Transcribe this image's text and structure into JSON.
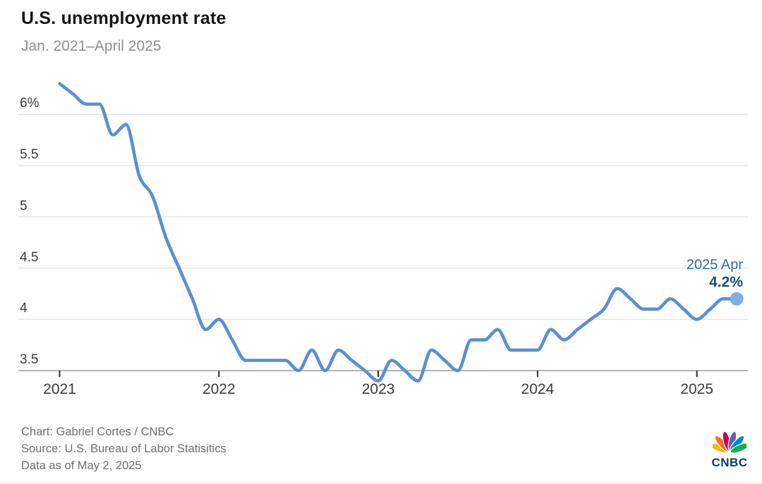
{
  "header": {
    "title": "U.S. unemployment rate",
    "subtitle": "Jan. 2021–April 2025"
  },
  "annotation": {
    "label": "2025 Apr",
    "value": "4.2%"
  },
  "footer": {
    "credit": "Chart: Gabriel Cortes / CNBC",
    "source": "Source: U.S. Bureau of Labor Statisitics",
    "as_of": "Data as of May 2, 2025",
    "logo_text": "CNBC"
  },
  "colors": {
    "line": "#5b8fd1",
    "end_dot": "#85ade0",
    "grid": "#e4e4e4",
    "baseline": "#a5a5a5",
    "tick": "#2b2b2b",
    "annotation_date": "#2e6da4",
    "annotation_value": "#1d4e80",
    "logo_navy": "#0b3a75",
    "peacock": [
      "#FCB711",
      "#F37021",
      "#CC004C",
      "#6460AA",
      "#0089D0",
      "#0DB14B"
    ]
  },
  "chart_data": {
    "type": "line",
    "title": "U.S. unemployment rate",
    "subtitle": "Jan. 2021–April 2025",
    "unit": "%",
    "x_monthly_range": [
      "2021-01",
      "2025-04"
    ],
    "x_tick_labels": [
      "2021",
      "2022",
      "2023",
      "2024",
      "2025"
    ],
    "y_ticks": {
      "labels": [
        "6%",
        "5.5",
        "5",
        "4.5",
        "4",
        "3.5"
      ],
      "values": [
        6,
        5.5,
        5,
        4.5,
        4,
        3.5
      ]
    },
    "ylim_drawn": [
      3.5,
      6
    ],
    "grid": true,
    "legend": false,
    "series": [
      {
        "name": "U.S. unemployment rate",
        "values": [
          6.3,
          6.2,
          6.1,
          6.1,
          5.8,
          5.9,
          5.4,
          5.2,
          4.8,
          4.5,
          4.2,
          3.9,
          4.0,
          3.8,
          3.6,
          3.6,
          3.6,
          3.6,
          3.5,
          3.7,
          3.5,
          3.7,
          3.6,
          3.5,
          3.4,
          3.6,
          3.5,
          3.4,
          3.7,
          3.6,
          3.5,
          3.8,
          3.8,
          3.9,
          3.7,
          3.7,
          3.7,
          3.9,
          3.8,
          3.9,
          4.0,
          4.1,
          4.3,
          4.2,
          4.1,
          4.1,
          4.2,
          4.1,
          4.0,
          4.1,
          4.2,
          4.2
        ]
      }
    ],
    "end_point": {
      "month": "2025-04",
      "value": 4.2,
      "label": "2025 Apr",
      "value_label": "4.2%"
    }
  }
}
